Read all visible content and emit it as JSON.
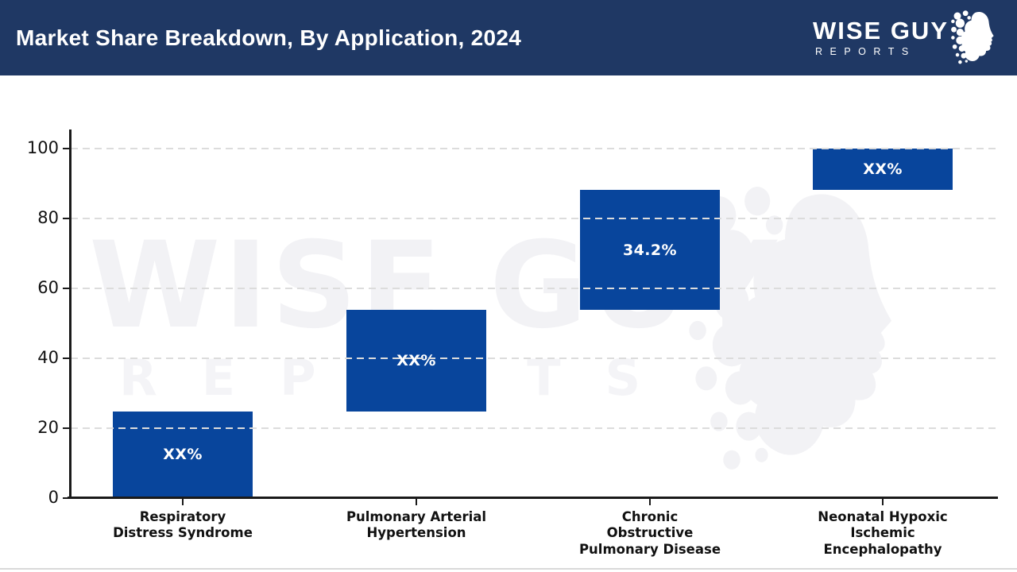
{
  "header": {
    "title": "Market Share Breakdown, By Application, 2024",
    "bg_color": "#1f3864",
    "logo": {
      "line1": "WISE GUY",
      "line2": "REPORTS"
    }
  },
  "watermark": {
    "line1": "WISE GUY",
    "line2": "REPORTS"
  },
  "chart_data": {
    "type": "bar",
    "subtype": "floating-segment-waterfall",
    "title": "Market Share Breakdown, By Application, 2024",
    "categories": [
      "Respiratory\nDistress Syndrome",
      "Pulmonary Arterial\nHypertension",
      "Chronic\nObstructive\nPulmonary Disease",
      "Neonatal Hypoxic\nIschemic\nEncephalopathy"
    ],
    "segments": [
      {
        "base": 0,
        "value": 24.8,
        "label": "XX%"
      },
      {
        "base": 24.8,
        "value": 29.1,
        "label": "XX%"
      },
      {
        "base": 53.9,
        "value": 34.2,
        "label": "34.2%"
      },
      {
        "base": 88.1,
        "value": 11.9,
        "label": "XX%"
      }
    ],
    "bar_color": "#08459c",
    "yticks": [
      0,
      20,
      40,
      60,
      80,
      100
    ],
    "ylim": [
      0,
      105
    ],
    "grid": "horizontal-dashed",
    "legend": "none",
    "xlabel": "",
    "ylabel": ""
  }
}
